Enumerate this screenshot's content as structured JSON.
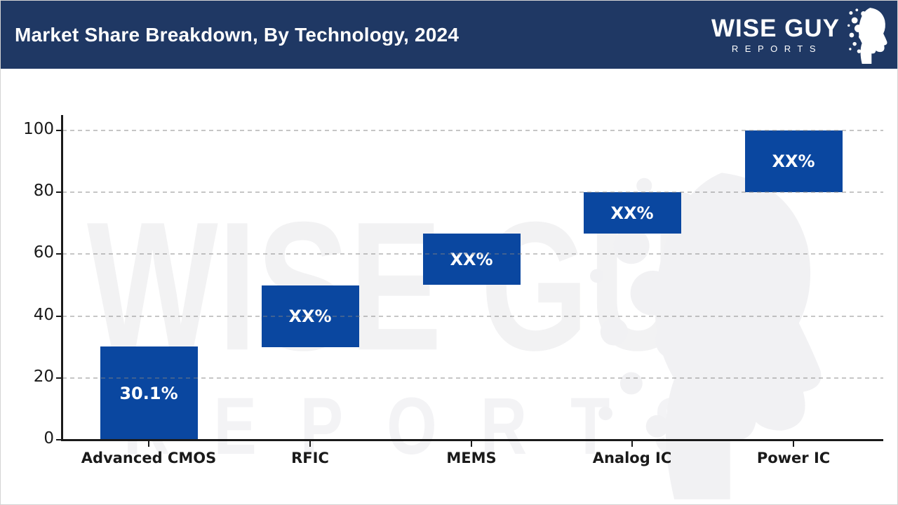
{
  "header": {
    "title": "Market Share Breakdown, By Technology, 2024",
    "bg_color": "#1f3864",
    "logo": {
      "name": "WISE GUY",
      "sub": "REPORTS",
      "icon": "dotted-head-profile-icon"
    }
  },
  "watermark": {
    "line1": "WISE GUY",
    "line2": "REPORTS"
  },
  "chart_data": {
    "type": "bar",
    "subtype": "floating-waterfall",
    "title": "Market Share Breakdown, By Technology, 2024",
    "categories": [
      "Advanced CMOS",
      "RFIC",
      "MEMS",
      "Analog IC",
      "Power IC"
    ],
    "series": [
      {
        "name": "Market share (%)",
        "segments": [
          {
            "category": "Advanced CMOS",
            "start": 0,
            "end": 30.1,
            "label": "30.1%"
          },
          {
            "category": "RFIC",
            "start": 30,
            "end": 50,
            "label": "XX%"
          },
          {
            "category": "MEMS",
            "start": 50,
            "end": 66.7,
            "label": "XX%"
          },
          {
            "category": "Analog IC",
            "start": 66.7,
            "end": 80,
            "label": "XX%"
          },
          {
            "category": "Power IC",
            "start": 80,
            "end": 100,
            "label": "XX%"
          }
        ]
      }
    ],
    "xlabel": "",
    "ylabel": "",
    "ylim": [
      0,
      100
    ],
    "yticks": [
      0,
      20,
      40,
      60,
      80,
      100
    ],
    "grid": "horizontal-dashed-over-bars",
    "legend": "none",
    "bar_color": "#0a47a0",
    "bar_label_color": "#ffffff",
    "axis_color": "#1a1a1a"
  }
}
